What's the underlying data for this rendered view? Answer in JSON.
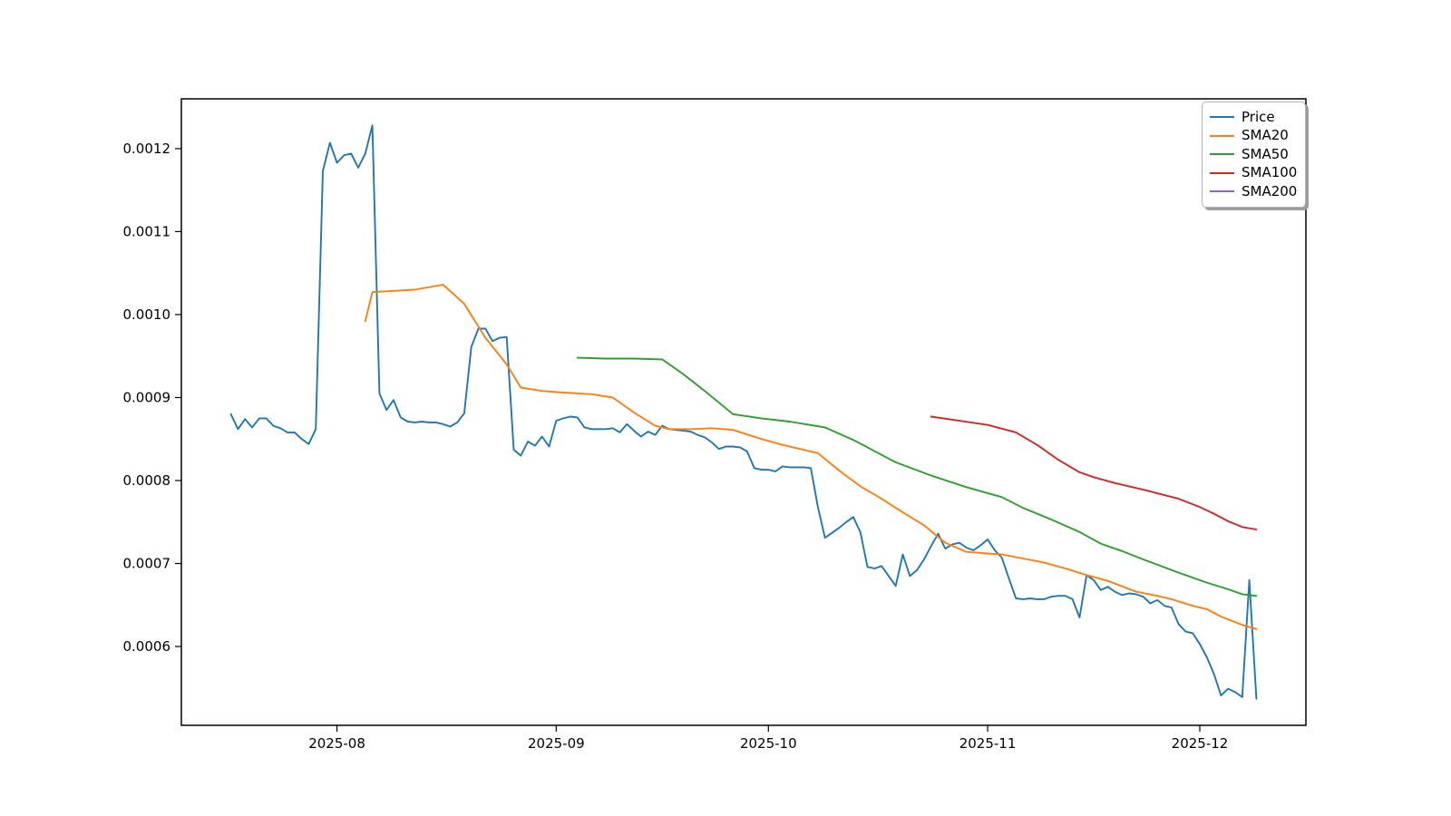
{
  "figure": {
    "background": "#ffffff",
    "axis_color": "#000000"
  },
  "chart_data": {
    "type": "line",
    "title": "",
    "xlabel": "",
    "ylabel": "",
    "grid": false,
    "legend_position": "upper right",
    "x_range": {
      "min": "2025-07-10",
      "max": "2025-12-16"
    },
    "y_range": {
      "min": 0.000505,
      "max": 0.00126
    },
    "x_ticks": [
      {
        "date": "2025-08-01",
        "label": "2025-08"
      },
      {
        "date": "2025-09-01",
        "label": "2025-09"
      },
      {
        "date": "2025-10-01",
        "label": "2025-10"
      },
      {
        "date": "2025-11-01",
        "label": "2025-11"
      },
      {
        "date": "2025-12-01",
        "label": "2025-12"
      }
    ],
    "y_ticks": [
      {
        "value": 0.0006,
        "label": "0.0006"
      },
      {
        "value": 0.0007,
        "label": "0.0007"
      },
      {
        "value": 0.0008,
        "label": "0.0008"
      },
      {
        "value": 0.0009,
        "label": "0.0009"
      },
      {
        "value": 0.001,
        "label": "0.0010"
      },
      {
        "value": 0.0011,
        "label": "0.0011"
      },
      {
        "value": 0.0012,
        "label": "0.0012"
      }
    ],
    "series": [
      {
        "name": "Price",
        "color": "#1f77b4",
        "points": [
          [
            "2025-07-17",
            0.00088
          ],
          [
            "2025-07-18",
            0.000862
          ],
          [
            "2025-07-19",
            0.000874
          ],
          [
            "2025-07-20",
            0.000864
          ],
          [
            "2025-07-21",
            0.000875
          ],
          [
            "2025-07-22",
            0.000875
          ],
          [
            "2025-07-23",
            0.000866
          ],
          [
            "2025-07-24",
            0.000863
          ],
          [
            "2025-07-25",
            0.000858
          ],
          [
            "2025-07-26",
            0.000858
          ],
          [
            "2025-07-27",
            0.00085
          ],
          [
            "2025-07-28",
            0.000844
          ],
          [
            "2025-07-29",
            0.000862
          ],
          [
            "2025-07-30",
            0.001173
          ],
          [
            "2025-07-31",
            0.001207
          ],
          [
            "2025-08-01",
            0.001183
          ],
          [
            "2025-08-02",
            0.001192
          ],
          [
            "2025-08-03",
            0.001194
          ],
          [
            "2025-08-04",
            0.001177
          ],
          [
            "2025-08-05",
            0.001194
          ],
          [
            "2025-08-06",
            0.001228
          ],
          [
            "2025-08-07",
            0.000905
          ],
          [
            "2025-08-08",
            0.000885
          ],
          [
            "2025-08-09",
            0.000897
          ],
          [
            "2025-08-10",
            0.000876
          ],
          [
            "2025-08-11",
            0.000871
          ],
          [
            "2025-08-12",
            0.00087
          ],
          [
            "2025-08-13",
            0.000871
          ],
          [
            "2025-08-14",
            0.00087
          ],
          [
            "2025-08-15",
            0.00087
          ],
          [
            "2025-08-16",
            0.000868
          ],
          [
            "2025-08-17",
            0.000865
          ],
          [
            "2025-08-18",
            0.00087
          ],
          [
            "2025-08-19",
            0.000881
          ],
          [
            "2025-08-20",
            0.000961
          ],
          [
            "2025-08-21",
            0.000983
          ],
          [
            "2025-08-22",
            0.000983
          ],
          [
            "2025-08-23",
            0.000968
          ],
          [
            "2025-08-24",
            0.000972
          ],
          [
            "2025-08-25",
            0.000973
          ],
          [
            "2025-08-26",
            0.000837
          ],
          [
            "2025-08-27",
            0.00083
          ],
          [
            "2025-08-28",
            0.000847
          ],
          [
            "2025-08-29",
            0.000842
          ],
          [
            "2025-08-30",
            0.000853
          ],
          [
            "2025-08-31",
            0.000841
          ],
          [
            "2025-09-01",
            0.000872
          ],
          [
            "2025-09-02",
            0.000875
          ],
          [
            "2025-09-03",
            0.000877
          ],
          [
            "2025-09-04",
            0.000876
          ],
          [
            "2025-09-05",
            0.000864
          ],
          [
            "2025-09-06",
            0.000862
          ],
          [
            "2025-09-07",
            0.000862
          ],
          [
            "2025-09-08",
            0.000862
          ],
          [
            "2025-09-09",
            0.000863
          ],
          [
            "2025-09-10",
            0.000858
          ],
          [
            "2025-09-11",
            0.000868
          ],
          [
            "2025-09-12",
            0.00086
          ],
          [
            "2025-09-13",
            0.000853
          ],
          [
            "2025-09-14",
            0.000859
          ],
          [
            "2025-09-15",
            0.000855
          ],
          [
            "2025-09-16",
            0.000866
          ],
          [
            "2025-09-17",
            0.000862
          ],
          [
            "2025-09-18",
            0.000861
          ],
          [
            "2025-09-19",
            0.00086
          ],
          [
            "2025-09-20",
            0.000859
          ],
          [
            "2025-09-21",
            0.000855
          ],
          [
            "2025-09-22",
            0.000852
          ],
          [
            "2025-09-23",
            0.000846
          ],
          [
            "2025-09-24",
            0.000838
          ],
          [
            "2025-09-25",
            0.000841
          ],
          [
            "2025-09-26",
            0.000841
          ],
          [
            "2025-09-27",
            0.00084
          ],
          [
            "2025-09-28",
            0.000835
          ],
          [
            "2025-09-29",
            0.000815
          ],
          [
            "2025-09-30",
            0.000813
          ],
          [
            "2025-10-01",
            0.000813
          ],
          [
            "2025-10-02",
            0.000811
          ],
          [
            "2025-10-03",
            0.000817
          ],
          [
            "2025-10-04",
            0.000816
          ],
          [
            "2025-10-05",
            0.000816
          ],
          [
            "2025-10-06",
            0.000816
          ],
          [
            "2025-10-07",
            0.000815
          ],
          [
            "2025-10-08",
            0.000768
          ],
          [
            "2025-10-09",
            0.000731
          ],
          [
            "2025-10-10",
            0.000737
          ],
          [
            "2025-10-11",
            0.000743
          ],
          [
            "2025-10-12",
            0.00075
          ],
          [
            "2025-10-13",
            0.000756
          ],
          [
            "2025-10-14",
            0.000738
          ],
          [
            "2025-10-15",
            0.000696
          ],
          [
            "2025-10-16",
            0.000694
          ],
          [
            "2025-10-17",
            0.000697
          ],
          [
            "2025-10-18",
            0.000685
          ],
          [
            "2025-10-19",
            0.000673
          ],
          [
            "2025-10-20",
            0.000711
          ],
          [
            "2025-10-21",
            0.000685
          ],
          [
            "2025-10-22",
            0.000692
          ],
          [
            "2025-10-23",
            0.000705
          ],
          [
            "2025-10-24",
            0.000721
          ],
          [
            "2025-10-25",
            0.000736
          ],
          [
            "2025-10-26",
            0.000718
          ],
          [
            "2025-10-27",
            0.000723
          ],
          [
            "2025-10-28",
            0.000725
          ],
          [
            "2025-10-29",
            0.000719
          ],
          [
            "2025-10-30",
            0.000716
          ],
          [
            "2025-10-31",
            0.000722
          ],
          [
            "2025-11-01",
            0.000729
          ],
          [
            "2025-11-02",
            0.000716
          ],
          [
            "2025-11-03",
            0.000707
          ],
          [
            "2025-11-04",
            0.000682
          ],
          [
            "2025-11-05",
            0.000658
          ],
          [
            "2025-11-06",
            0.000657
          ],
          [
            "2025-11-07",
            0.000658
          ],
          [
            "2025-11-08",
            0.000657
          ],
          [
            "2025-11-09",
            0.000657
          ],
          [
            "2025-11-10",
            0.00066
          ],
          [
            "2025-11-11",
            0.000661
          ],
          [
            "2025-11-12",
            0.000661
          ],
          [
            "2025-11-13",
            0.000657
          ],
          [
            "2025-11-14",
            0.000635
          ],
          [
            "2025-11-15",
            0.000686
          ],
          [
            "2025-11-16",
            0.00068
          ],
          [
            "2025-11-17",
            0.000668
          ],
          [
            "2025-11-18",
            0.000672
          ],
          [
            "2025-11-19",
            0.000666
          ],
          [
            "2025-11-20",
            0.000662
          ],
          [
            "2025-11-21",
            0.000664
          ],
          [
            "2025-11-22",
            0.000663
          ],
          [
            "2025-11-23",
            0.00066
          ],
          [
            "2025-11-24",
            0.000652
          ],
          [
            "2025-11-25",
            0.000656
          ],
          [
            "2025-11-26",
            0.000649
          ],
          [
            "2025-11-27",
            0.000647
          ],
          [
            "2025-11-28",
            0.000627
          ],
          [
            "2025-11-29",
            0.000618
          ],
          [
            "2025-11-30",
            0.000616
          ],
          [
            "2025-12-01",
            0.000603
          ],
          [
            "2025-12-02",
            0.000587
          ],
          [
            "2025-12-03",
            0.000567
          ],
          [
            "2025-12-04",
            0.000541
          ],
          [
            "2025-12-05",
            0.000549
          ],
          [
            "2025-12-06",
            0.000545
          ],
          [
            "2025-12-07",
            0.000539
          ],
          [
            "2025-12-08",
            0.00068
          ],
          [
            "2025-12-09",
            0.000537
          ]
        ]
      },
      {
        "name": "SMA20",
        "color": "#ff7f0e",
        "points": [
          [
            "2025-08-05",
            0.000992
          ],
          [
            "2025-08-06",
            0.001027
          ],
          [
            "2025-08-08",
            0.001028
          ],
          [
            "2025-08-12",
            0.00103
          ],
          [
            "2025-08-16",
            0.001036
          ],
          [
            "2025-08-19",
            0.001013
          ],
          [
            "2025-08-22",
            0.000972
          ],
          [
            "2025-08-25",
            0.00094
          ],
          [
            "2025-08-27",
            0.000912
          ],
          [
            "2025-08-30",
            0.000908
          ],
          [
            "2025-09-02",
            0.000906
          ],
          [
            "2025-09-06",
            0.000904
          ],
          [
            "2025-09-09",
            0.0009
          ],
          [
            "2025-09-12",
            0.000882
          ],
          [
            "2025-09-15",
            0.000866
          ],
          [
            "2025-09-17",
            0.000862
          ],
          [
            "2025-09-20",
            0.000862
          ],
          [
            "2025-09-23",
            0.000863
          ],
          [
            "2025-09-26",
            0.000861
          ],
          [
            "2025-09-30",
            0.00085
          ],
          [
            "2025-10-03",
            0.000843
          ],
          [
            "2025-10-08",
            0.000833
          ],
          [
            "2025-10-11",
            0.000812
          ],
          [
            "2025-10-14",
            0.000793
          ],
          [
            "2025-10-17",
            0.000778
          ],
          [
            "2025-10-19",
            0.000767
          ],
          [
            "2025-10-23",
            0.000746
          ],
          [
            "2025-10-26",
            0.000725
          ],
          [
            "2025-10-29",
            0.000714
          ],
          [
            "2025-11-01",
            0.000712
          ],
          [
            "2025-11-03",
            0.000711
          ],
          [
            "2025-11-06",
            0.000706
          ],
          [
            "2025-11-09",
            0.000701
          ],
          [
            "2025-11-12",
            0.000694
          ],
          [
            "2025-11-15",
            0.000686
          ],
          [
            "2025-11-18",
            0.000679
          ],
          [
            "2025-11-22",
            0.000666
          ],
          [
            "2025-11-25",
            0.000661
          ],
          [
            "2025-11-27",
            0.000657
          ],
          [
            "2025-11-30",
            0.000649
          ],
          [
            "2025-12-02",
            0.000645
          ],
          [
            "2025-12-04",
            0.000636
          ],
          [
            "2025-12-07",
            0.000626
          ],
          [
            "2025-12-09",
            0.000621
          ]
        ]
      },
      {
        "name": "SMA50",
        "color": "#2ca02c",
        "points": [
          [
            "2025-09-04",
            0.000948
          ],
          [
            "2025-09-08",
            0.000947
          ],
          [
            "2025-09-12",
            0.000947
          ],
          [
            "2025-09-16",
            0.000946
          ],
          [
            "2025-09-19",
            0.000928
          ],
          [
            "2025-09-22",
            0.000908
          ],
          [
            "2025-09-26",
            0.00088
          ],
          [
            "2025-09-30",
            0.000875
          ],
          [
            "2025-10-04",
            0.000871
          ],
          [
            "2025-10-09",
            0.000864
          ],
          [
            "2025-10-13",
            0.000849
          ],
          [
            "2025-10-19",
            0.000822
          ],
          [
            "2025-10-24",
            0.000806
          ],
          [
            "2025-10-29",
            0.000792
          ],
          [
            "2025-11-03",
            0.00078
          ],
          [
            "2025-11-06",
            0.000767
          ],
          [
            "2025-11-10",
            0.000753
          ],
          [
            "2025-11-14",
            0.000738
          ],
          [
            "2025-11-17",
            0.000724
          ],
          [
            "2025-11-20",
            0.000715
          ],
          [
            "2025-11-23",
            0.000705
          ],
          [
            "2025-11-28",
            0.000689
          ],
          [
            "2025-12-02",
            0.000677
          ],
          [
            "2025-12-05",
            0.000669
          ],
          [
            "2025-12-07",
            0.000663
          ],
          [
            "2025-12-09",
            0.000661
          ]
        ]
      },
      {
        "name": "SMA100",
        "color": "#d62728",
        "points": [
          [
            "2025-10-24",
            0.000877
          ],
          [
            "2025-10-28",
            0.000872
          ],
          [
            "2025-11-01",
            0.000867
          ],
          [
            "2025-11-05",
            0.000858
          ],
          [
            "2025-11-08",
            0.000843
          ],
          [
            "2025-11-11",
            0.000825
          ],
          [
            "2025-11-14",
            0.00081
          ],
          [
            "2025-11-16",
            0.000804
          ],
          [
            "2025-11-19",
            0.000797
          ],
          [
            "2025-11-23",
            0.000789
          ],
          [
            "2025-11-28",
            0.000778
          ],
          [
            "2025-12-01",
            0.000768
          ],
          [
            "2025-12-03",
            0.00076
          ],
          [
            "2025-12-05",
            0.000751
          ],
          [
            "2025-12-07",
            0.000744
          ],
          [
            "2025-12-09",
            0.000741
          ]
        ]
      },
      {
        "name": "SMA200",
        "color": "#9467bd",
        "points": []
      }
    ]
  }
}
